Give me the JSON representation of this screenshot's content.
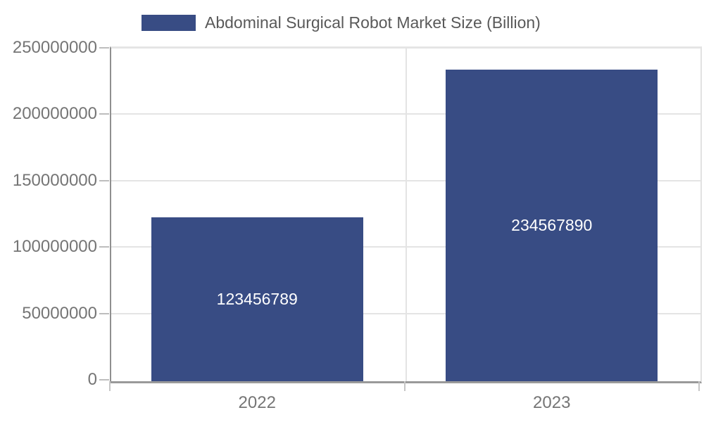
{
  "legend": {
    "label": "Abdominal Surgical Robot Market Size (Billion)"
  },
  "chart_data": {
    "type": "bar",
    "series_name": "Abdominal Surgical Robot Market Size (Billion)",
    "categories": [
      "2022",
      "2023"
    ],
    "values": [
      123456789,
      234567890
    ],
    "bar_labels": [
      "123456789",
      "234567890"
    ],
    "ylim": [
      0,
      250000000
    ],
    "yticks": [
      0,
      50000000,
      100000000,
      150000000,
      200000000,
      250000000
    ],
    "ytick_labels": [
      "0",
      "50000000",
      "100000000",
      "150000000",
      "200000000",
      "250000000"
    ],
    "grid": true,
    "legend_position": "top-center",
    "colors": {
      "bar": "#384C84",
      "bar_label": "#ffffff",
      "grid": "#e4e4e4",
      "axis": "#9a9a9a",
      "tick_label": "#757575",
      "legend_text": "#595959",
      "background": "#ffffff"
    }
  }
}
